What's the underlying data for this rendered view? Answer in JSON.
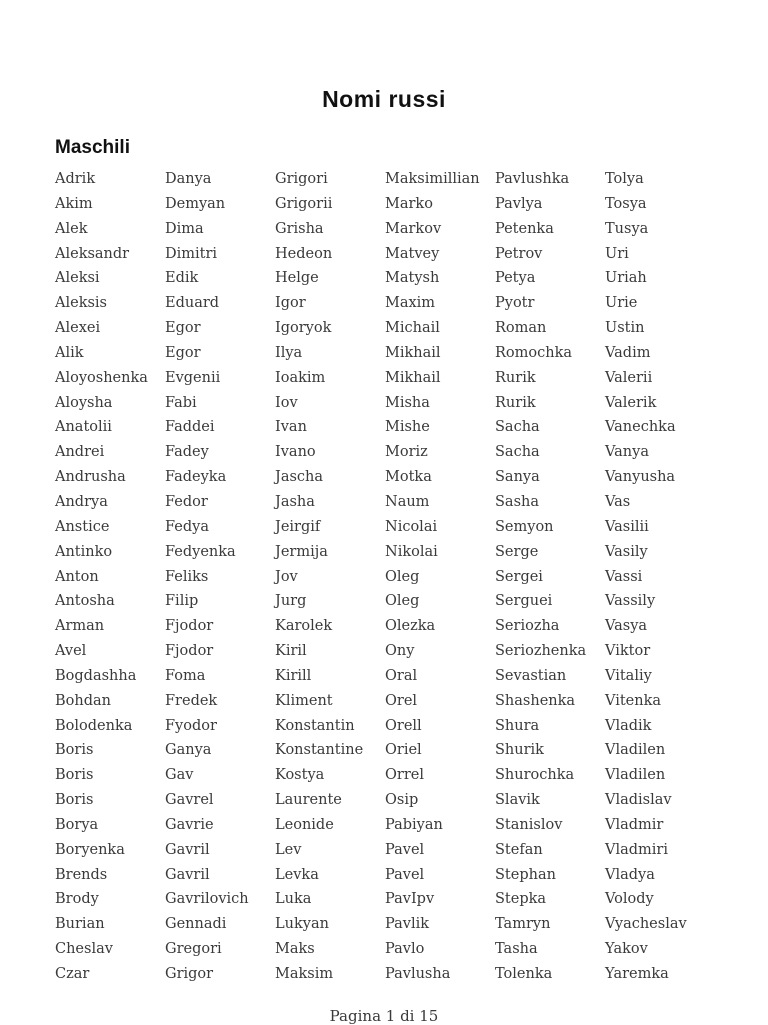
{
  "page": {
    "title": "Nomi russi",
    "section_heading": "Maschili",
    "footer": "Pagina 1 di 15"
  },
  "columns": [
    [
      "Adrik",
      "Akim",
      "Alek",
      "Aleksandr",
      "Aleksi",
      "Aleksis",
      "Alexei",
      "Alik",
      "Aloyoshenka",
      "Aloysha",
      "Anatolii",
      "Andrei",
      "Andrusha",
      "Andrya",
      "Anstice",
      "Antinko",
      "Anton",
      "Antosha",
      "Arman",
      "Avel",
      "Bogdashha",
      "Bohdan",
      "Bolodenka",
      "Boris",
      "Boris",
      "Boris",
      "Borya",
      "Boryenka",
      "Brends",
      "Brody",
      "Burian",
      "Cheslav",
      "Czar"
    ],
    [
      "Danya",
      "Demyan",
      "Dima",
      "Dimitri",
      "Edik",
      "Eduard",
      "Egor",
      "Egor",
      "Evgenii",
      "Fabi",
      "Faddei",
      "Fadey",
      "Fadeyka",
      "Fedor",
      "Fedya",
      "Fedyenka",
      "Feliks",
      "Filip",
      "Fjodor",
      "Fjodor",
      "Foma",
      "Fredek",
      "Fyodor",
      "Ganya",
      "Gav",
      "Gavrel",
      "Gavrie",
      "Gavril",
      "Gavril",
      "Gavrilovich",
      "Gennadi",
      "Gregori",
      "Grigor"
    ],
    [
      "Grigori",
      "Grigorii",
      "Grisha",
      "Hedeon",
      "Helge",
      "Igor",
      "Igoryok",
      "Ilya",
      "Ioakim",
      "Iov",
      "Ivan",
      "Ivano",
      "Jascha",
      "Jasha",
      "Jeirgif",
      "Jermija",
      "Jov",
      "Jurg",
      "Karolek",
      "Kiril",
      "Kirill",
      "Kliment",
      "Konstantin",
      "Konstantine",
      "Kostya",
      "Laurente",
      "Leonide",
      "Lev",
      "Levka",
      "Luka",
      "Lukyan",
      "Maks",
      "Maksim"
    ],
    [
      "Maksimillian",
      "Marko",
      "Markov",
      "Matvey",
      "Matysh",
      "Maxim",
      "Michail",
      "Mikhail",
      "Mikhail",
      "Misha",
      "Mishe",
      "Moriz",
      "Motka",
      "Naum",
      "Nicolai",
      "Nikolai",
      "Oleg",
      "Oleg",
      "Olezka",
      "Ony",
      "Oral",
      "Orel",
      "Orell",
      "Oriel",
      "Orrel",
      "Osip",
      "Pabiyan",
      "Pavel",
      "Pavel",
      "PavIpv",
      "Pavlik",
      "Pavlo",
      "Pavlusha"
    ],
    [
      "Pavlushka",
      "Pavlya",
      "Petenka",
      "Petrov",
      "Petya",
      "Pyotr",
      "Roman",
      "Romochka",
      "Rurik",
      "Rurik",
      "Sacha",
      "Sacha",
      "Sanya",
      "Sasha",
      "Semyon",
      "Serge",
      "Sergei",
      "Serguei",
      "Seriozha",
      "Seriozhenka",
      "Sevastian",
      "Shashenka",
      "Shura",
      "Shurik",
      "Shurochka",
      "Slavik",
      "Stanislov",
      "Stefan",
      "Stephan",
      "Stepka",
      "Tamryn",
      "Tasha",
      "Tolenka"
    ],
    [
      "Tolya",
      "Tosya",
      "Tusya",
      "Uri",
      "Uriah",
      "Urie",
      "Ustin",
      "Vadim",
      "Valerii",
      "Valerik",
      "Vanechka",
      "Vanya",
      "Vanyusha",
      "Vas",
      "Vasilii",
      "Vasily",
      "Vassi",
      "Vassily",
      "Vasya",
      "Viktor",
      "Vitaliy",
      "Vitenka",
      "Vladik",
      "Vladilen",
      "Vladilen",
      "Vladislav",
      "Vladmir",
      "Vladmiri",
      "Vladya",
      "Volody",
      "Vyacheslav",
      "Yakov",
      "Yaremka"
    ]
  ]
}
